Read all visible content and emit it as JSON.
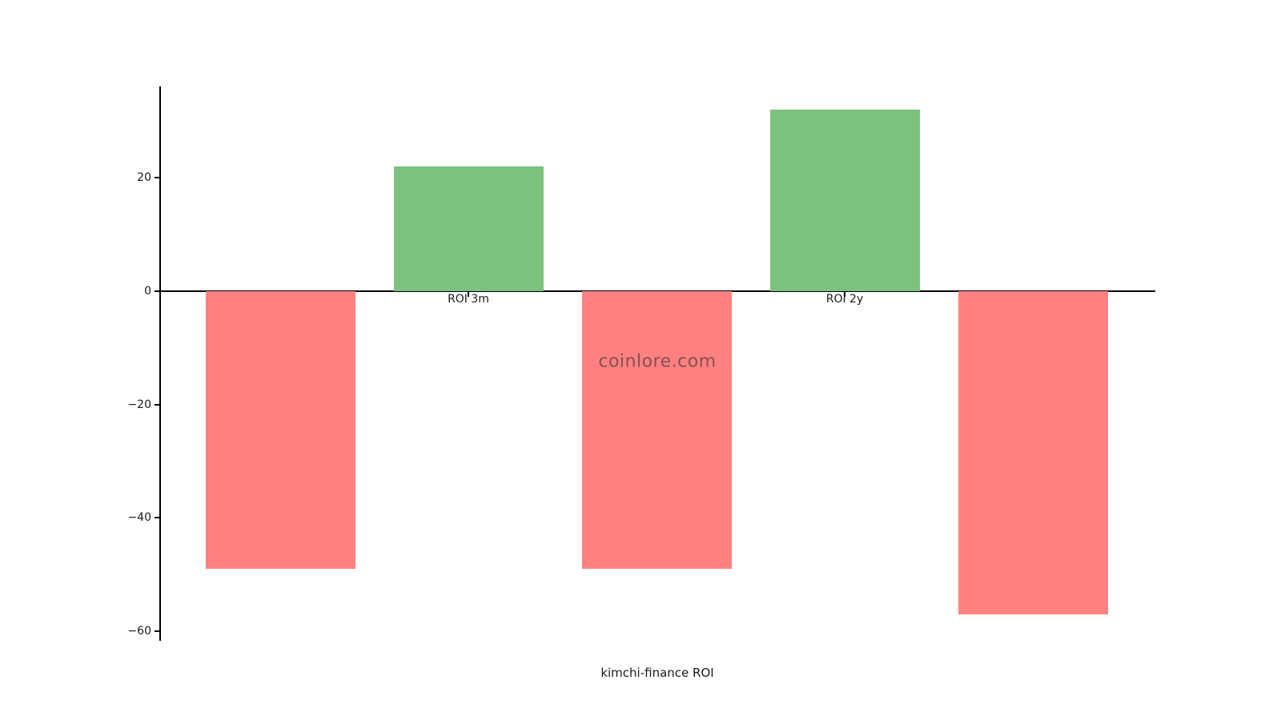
{
  "watermark": {
    "text": "coinlore.com"
  },
  "chart_data": {
    "type": "bar",
    "title": "kimchi-finance ROI",
    "xlabel": "kimchi-finance ROI",
    "ylabel": "",
    "categories": [
      "",
      "ROI 3m",
      "",
      "ROI 2y",
      ""
    ],
    "values": [
      -49,
      22,
      -49,
      32,
      -57
    ],
    "yticks": [
      20,
      0,
      -20,
      -40,
      -60
    ],
    "ytick_labels": [
      "20",
      "0",
      "−20",
      "−40",
      "−60"
    ],
    "ylim": [
      -62,
      36
    ],
    "grid": false,
    "legend_position": "none",
    "colors": {
      "positive_bar": "#7cc17e",
      "negative_bar": "#ff8080",
      "axis": "#000000",
      "tick_text": "#1a1a1a",
      "watermark_text": "rgba(45,45,45,0.58)"
    }
  }
}
